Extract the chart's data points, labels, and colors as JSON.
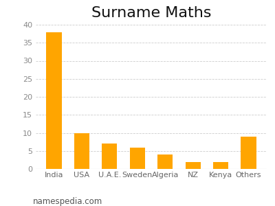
{
  "title": "Surname Maths",
  "categories": [
    "India",
    "USA",
    "U.A.E.",
    "Sweden",
    "Algeria",
    "NZ",
    "Kenya",
    "Others"
  ],
  "values": [
    38,
    10,
    7,
    6,
    4,
    2,
    2,
    9
  ],
  "bar_color": "#FFA500",
  "background_color": "#ffffff",
  "ylim": [
    0,
    40
  ],
  "yticks": [
    0,
    5,
    10,
    15,
    20,
    25,
    30,
    35,
    40
  ],
  "grid_color": "#cccccc",
  "title_fontsize": 16,
  "tick_fontsize": 8,
  "xlabel_fontsize": 8,
  "footer_text": "namespedia.com",
  "footer_fontsize": 8.5
}
